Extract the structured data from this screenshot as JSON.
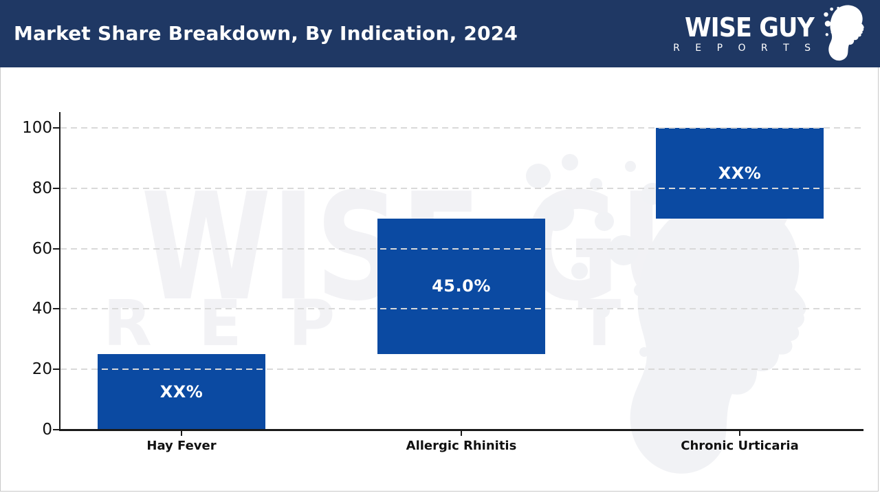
{
  "header": {
    "title": "Market Share Breakdown, By Indication, 2024",
    "background_color": "#1f3864",
    "logo": {
      "line1": "WISE GUY",
      "line2": "R E P O R T S"
    }
  },
  "watermark": {
    "line1": "WISE GUY",
    "line2": "R E P O R T S"
  },
  "chart_data": {
    "type": "bar",
    "variant": "floating-waterfall",
    "title": "Market Share Breakdown, By Indication, 2024",
    "categories": [
      "Hay Fever",
      "Allergic Rhinitis",
      "Chronic Urticaria"
    ],
    "segments": [
      {
        "category": "Hay Fever",
        "start": 0,
        "end": 25,
        "label": "XX%"
      },
      {
        "category": "Allergic Rhinitis",
        "start": 25,
        "end": 70,
        "label": "45.0%"
      },
      {
        "category": "Chronic Urticaria",
        "start": 70,
        "end": 100,
        "label": "XX%"
      }
    ],
    "xlabel": "",
    "ylabel": "",
    "ylim": [
      0,
      100
    ],
    "yticks": [
      0,
      20,
      40,
      60,
      80,
      100
    ],
    "grid": {
      "horizontal": true,
      "style": "dashed",
      "color": "#d9d9d9"
    },
    "legend": "none",
    "bar_color": "#0b4aa2",
    "bar_label_color": "#ffffff",
    "axis_color": "#1a1a1a"
  }
}
